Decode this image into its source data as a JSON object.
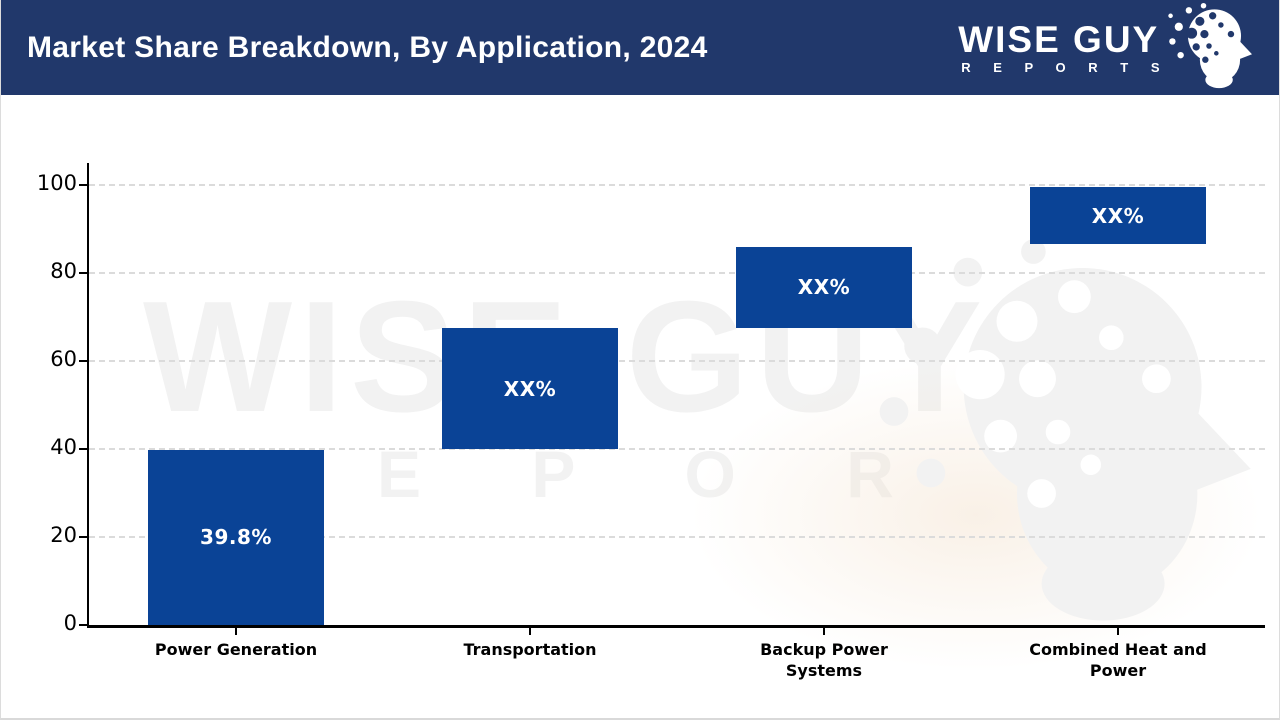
{
  "header": {
    "title": "Market Share Breakdown, By Application, 2024",
    "logo": {
      "name": "WISE GUY",
      "subtitle": "R E P O R T S"
    }
  },
  "watermark": {
    "line1": "WISE GUY",
    "line2": "R E P O R T S"
  },
  "chart_data": {
    "type": "bar",
    "subtype": "waterfall",
    "title": "Market Share Breakdown, By Application, 2024",
    "categories": [
      "Power Generation",
      "Transportation",
      "Backup Power Systems",
      "Combined Heat and Power"
    ],
    "category_lines": [
      [
        "Power Generation"
      ],
      [
        "Transportation"
      ],
      [
        "Backup Power",
        "Systems"
      ],
      [
        "Combined Heat and",
        "Power"
      ]
    ],
    "segments": [
      {
        "category": "Power Generation",
        "start": 0,
        "end": 39.8,
        "label": "39.8%"
      },
      {
        "category": "Transportation",
        "start": 40,
        "end": 67.5,
        "label": "XX%"
      },
      {
        "category": "Backup Power Systems",
        "start": 67.5,
        "end": 86,
        "label": "XX%"
      },
      {
        "category": "Combined Heat and Power",
        "start": 86.5,
        "end": 99.5,
        "label": "XX%"
      }
    ],
    "yticks": [
      0,
      20,
      40,
      60,
      80,
      100
    ],
    "ylim": [
      0,
      104.5
    ],
    "xlabel": "",
    "ylabel": "",
    "legend": null,
    "grid": {
      "horizontal": true,
      "style": "dashed",
      "color": "#dbdbdb"
    },
    "bar_color": "#0a4396",
    "bar_label_color": "#ffffff",
    "axis_color": "#000000"
  },
  "colors": {
    "header_bg": "#21386b",
    "page_bg": "#ffffff",
    "bar": "#0a4396",
    "watermark": "#f2f2f2",
    "border": "#d9d9d9"
  }
}
